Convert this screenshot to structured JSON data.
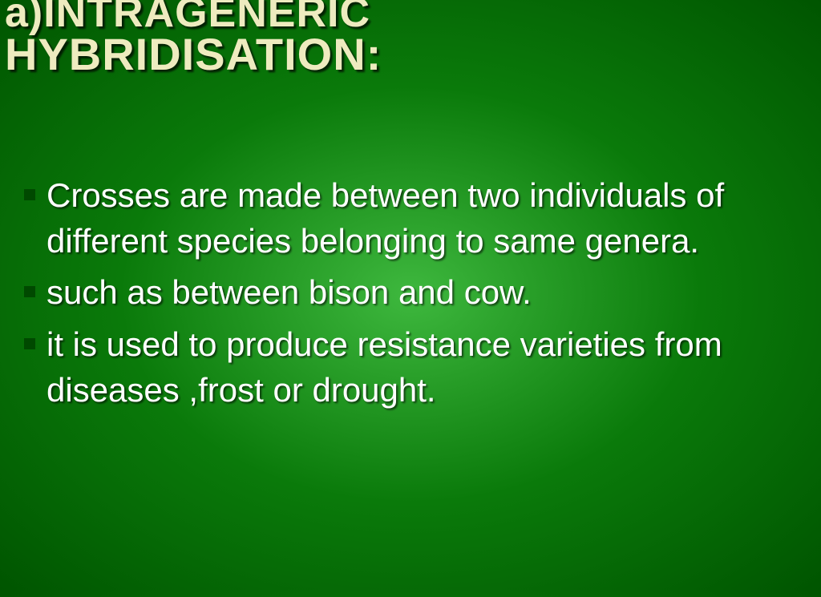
{
  "slide": {
    "heading_line1": "a)INTRAGENERIC",
    "heading_line2": "HYBRIDISATION:",
    "bullets": [
      "Crosses are made between two individuals of different species belonging to same genera.",
      "such as between bison and cow.",
      "it is used to produce resistance varieties from diseases ,frost or drought."
    ],
    "styling": {
      "background_gradient_center": "#3eb83e",
      "background_gradient_mid": "#0a7a0a",
      "background_gradient_edge": "#005500",
      "heading_color": "#e8e6c0",
      "heading_fontsize_line1": 52,
      "heading_fontsize_line2": 56,
      "heading_font_weight": 900,
      "heading_shadow": "3px 3px 2px rgba(0,0,0,0.7)",
      "body_color": "#ffffff",
      "body_fontsize": 42,
      "body_shadow": "2px 2px 2px rgba(0,0,0,0.6)",
      "bullet_marker_color": "#0a4a0a",
      "bullet_marker_size": 14,
      "font_family": "Arial"
    }
  }
}
